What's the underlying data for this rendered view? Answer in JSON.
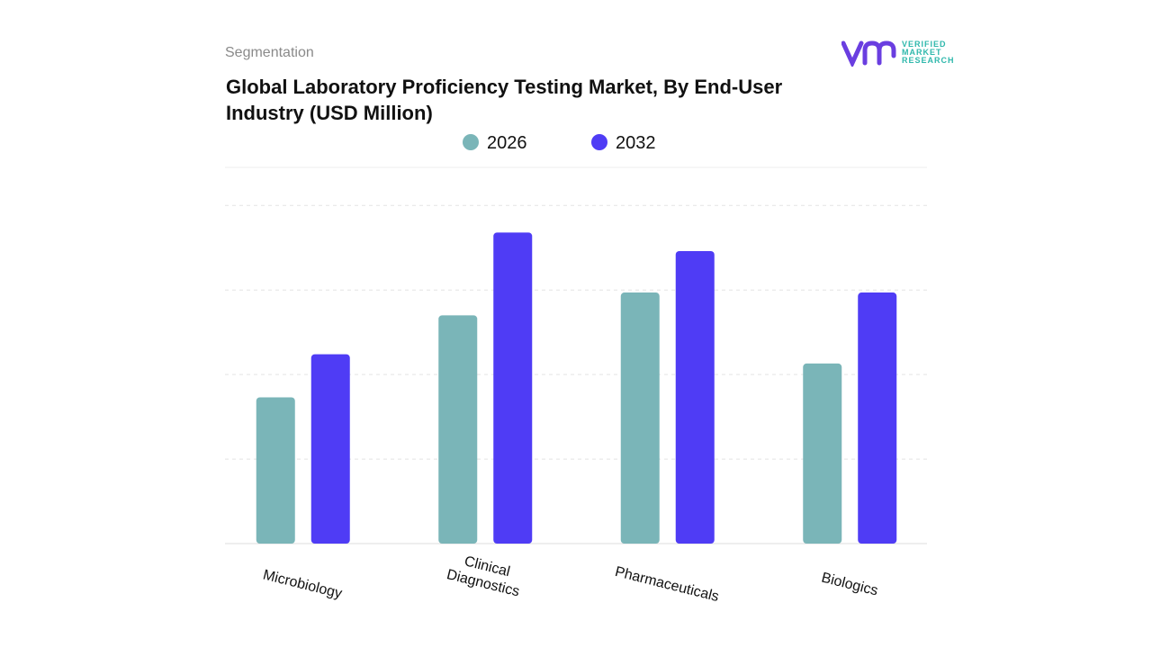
{
  "header": "Segmentation",
  "logo": {
    "lines": [
      "VERIFIED",
      "MARKET",
      "RESEARCH"
    ]
  },
  "chart_data": {
    "type": "bar",
    "title": "Global Laboratory Proficiency Testing Market, By End-User Industry (USD Million)",
    "categories": [
      "Microbiology",
      "Clinical Diagnostics",
      "Pharmaceuticals",
      "Biologics"
    ],
    "series": [
      {
        "name": "2026",
        "color": "#7ab5b8",
        "values": [
          1.73,
          2.7,
          2.97,
          2.13
        ]
      },
      {
        "name": "2032",
        "color": "#4f3cf5",
        "values": [
          2.24,
          3.68,
          3.46,
          2.97
        ]
      }
    ],
    "ylim": [
      0,
      4.45
    ],
    "yticks": [
      0,
      1,
      2,
      3,
      4
    ],
    "grid": true
  }
}
